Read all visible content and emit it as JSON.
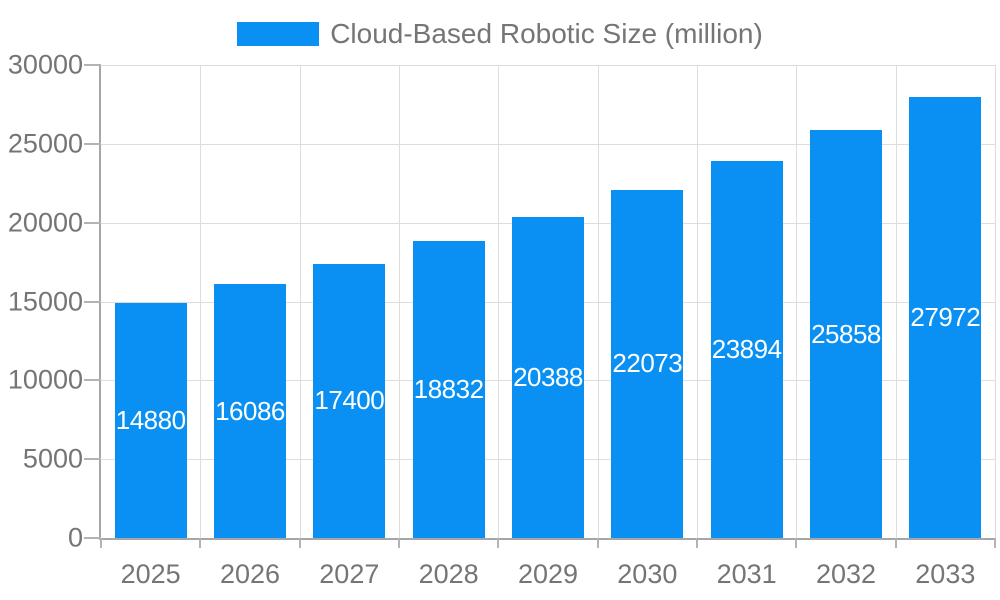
{
  "legend": {
    "label": "Cloud-Based Robotic Size (million)"
  },
  "colors": {
    "bar": "#0990f2",
    "bar_label": "#ffffff",
    "axis_text": "#757575",
    "grid": "#dddddd",
    "axis_line": "#a6a6a6",
    "tick": "#b3b3b3",
    "background": "#ffffff"
  },
  "chart_data": {
    "type": "bar",
    "title": "Cloud-Based Robotic Size (million)",
    "categories": [
      "2025",
      "2026",
      "2027",
      "2028",
      "2029",
      "2030",
      "2031",
      "2032",
      "2033"
    ],
    "series": [
      {
        "name": "Cloud-Based Robotic Size (million)",
        "values": [
          14880,
          16086,
          17400,
          18832,
          20388,
          22073,
          23894,
          25858,
          27972
        ]
      }
    ],
    "xlabel": "",
    "ylabel": "",
    "ylim": [
      0,
      30000
    ],
    "yticks": [
      0,
      5000,
      10000,
      15000,
      20000,
      25000,
      30000
    ],
    "grid": true,
    "legend_position": "top-center",
    "value_labels": "inside-center-white"
  }
}
